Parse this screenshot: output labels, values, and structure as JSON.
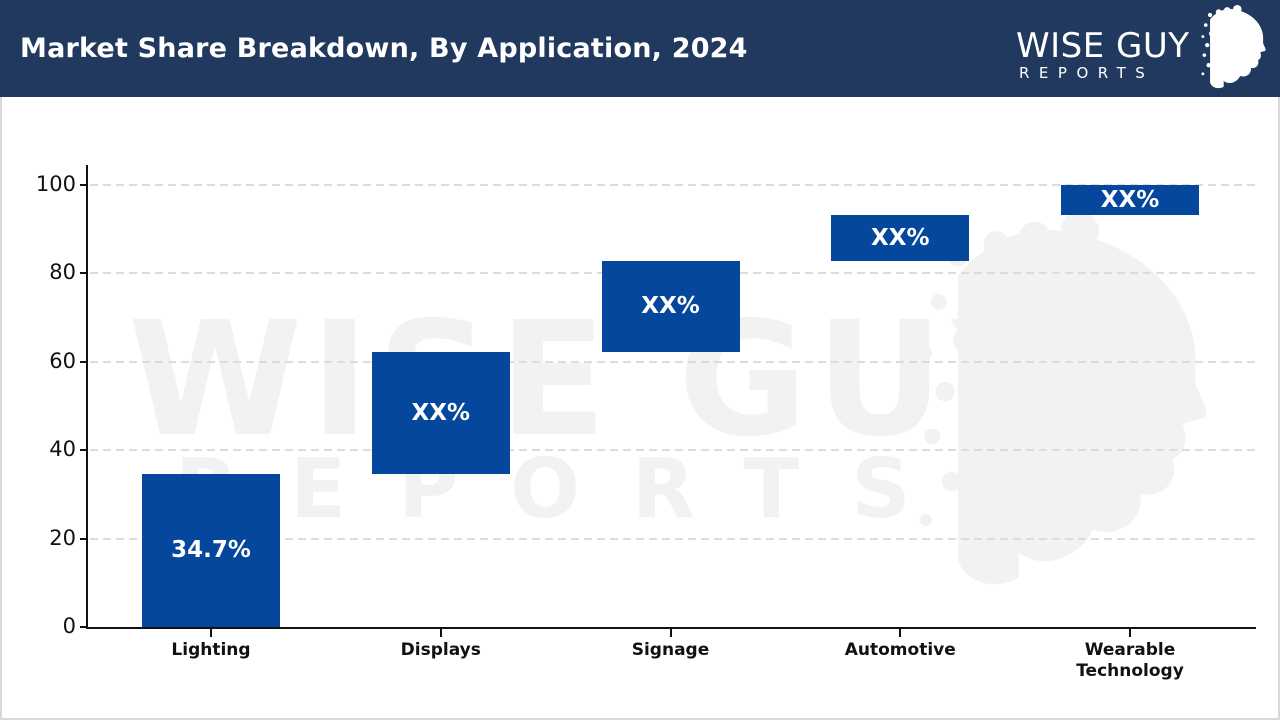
{
  "header": {
    "title": "Market Share Breakdown, By Application, 2024",
    "logo": {
      "line1": "WISE GUY",
      "line2": "REPORTS"
    }
  },
  "watermark": {
    "line1": "WISE GUY",
    "line2": "REPORTS"
  },
  "colors": {
    "header_bg": "#21395e",
    "bar": "#04479d",
    "bar_label": "#ffffff",
    "grid": "#dcdcdc",
    "axis": "#111111",
    "watermark": "#f2f2f2",
    "frame_border": "#d9d9d9"
  },
  "chart_data": {
    "type": "bar",
    "subtype": "waterfall",
    "title": "Market Share Breakdown, By Application, 2024",
    "categories": [
      "Lighting",
      "Displays",
      "Signage",
      "Automotive",
      "Wearable Technology"
    ],
    "segments": [
      {
        "category": "Lighting",
        "start": 0,
        "end": 34.7,
        "label": "34.7%"
      },
      {
        "category": "Displays",
        "start": 34.7,
        "end": 62.2,
        "label": "XX%"
      },
      {
        "category": "Signage",
        "start": 62.2,
        "end": 82.9,
        "label": "XX%"
      },
      {
        "category": "Automotive",
        "start": 82.9,
        "end": 93.3,
        "label": "XX%"
      },
      {
        "category": "Wearable Technology",
        "start": 93.3,
        "end": 100,
        "label": "XX%"
      }
    ],
    "y_ticks": [
      0,
      20,
      40,
      60,
      80,
      100
    ],
    "ylim": [
      0,
      100
    ],
    "xlabel": "",
    "ylabel": "",
    "grid": "horizontal-dashed",
    "legend": "none",
    "values_note": "non-first segment labels redacted as XX% in source image"
  }
}
